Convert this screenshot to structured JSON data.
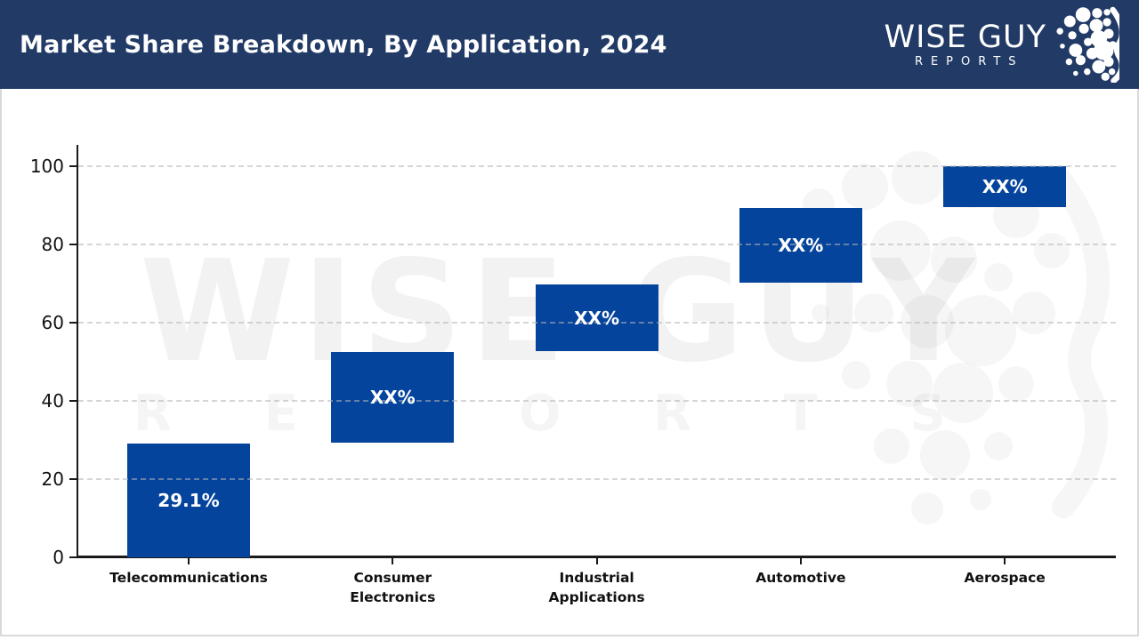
{
  "header": {
    "title": "Market Share Breakdown, By Application, 2024",
    "logo_line1": "WISE GUY",
    "logo_line2": "REPORTS",
    "bg_color": "#213a66"
  },
  "watermark": {
    "line1": "WISE GUY",
    "line2": "R E P O R T S"
  },
  "chart_data": {
    "type": "bar",
    "subtype": "waterfall",
    "title": "Market Share Breakdown, By Application, 2024",
    "xlabel": "",
    "ylabel": "",
    "ylim": [
      0,
      100
    ],
    "yticks": [
      0,
      20,
      40,
      60,
      80,
      100
    ],
    "grid": "horizontal-dashed",
    "legend": "none",
    "bar_color": "#04449c",
    "value_label_color": "#ffffff",
    "categories": [
      "Telecommunications",
      "Consumer\nElectronics",
      "Industrial\nApplications",
      "Automotive",
      "Aerospace"
    ],
    "segments": [
      {
        "category": "Telecommunications",
        "start": 0,
        "end": 29.1,
        "label": "29.1%"
      },
      {
        "category": "Consumer Electronics",
        "start": 29.3,
        "end": 52.6,
        "label": "XX%"
      },
      {
        "category": "Industrial Applications",
        "start": 52.7,
        "end": 69.8,
        "label": "XX%"
      },
      {
        "category": "Automotive",
        "start": 70.2,
        "end": 89.3,
        "label": "XX%"
      },
      {
        "category": "Aerospace",
        "start": 89.5,
        "end": 100,
        "label": "XX%"
      }
    ]
  }
}
